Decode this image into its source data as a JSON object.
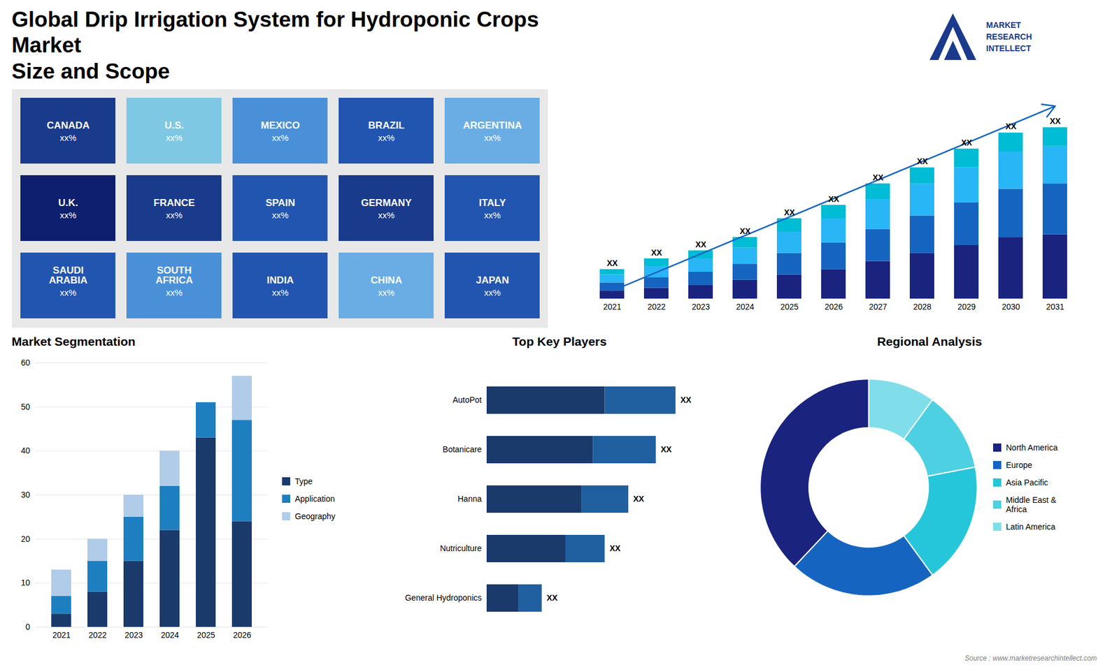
{
  "chart_data": [
    {
      "type": "map",
      "title": "Global Drip Irrigation System for Hydroponic Crops Market\nSize and Scope",
      "categories": [
        "CANADA",
        "U.S.",
        "MEXICO",
        "BRAZIL",
        "ARGENTINA",
        "U.K.",
        "FRANCE",
        "SPAIN",
        "GERMANY",
        "ITALY",
        "SAUDI\nARABIA",
        "SOUTH\nAFRICA",
        "INDIA",
        "CHINA",
        "JAPAN"
      ],
      "colors": [
        "#1a3a8c",
        "#7ec8e3",
        "#4a90d9",
        "#2255b0",
        "#6aade4",
        "#0d1f6e",
        "#1a3a8c",
        "#2255b0",
        "#1a3a8c",
        "#2255b0",
        "#2255b0",
        "#4a90d9",
        "#2255b0",
        "#6aade4",
        "#2255b0"
      ],
      "data_labels": true,
      "value_labels": [
        "xx%",
        "xx%",
        "xx%",
        "xx%",
        "xx%",
        "xx%",
        "xx%",
        "xx%",
        "xx%",
        "xx%",
        "xx%",
        "xx%",
        "xx%",
        "xx%",
        "xx%"
      ],
      "annotations": [
        "Source : www.marketresearchintellect.com",
        "MARKET\nRESEARCH\nINTELLECT"
      ]
    },
    {
      "type": "bar",
      "stacked": true,
      "categories": [
        "2021",
        "2022",
        "2023",
        "2024",
        "2025",
        "2026",
        "2027",
        "2028",
        "2029",
        "2030",
        "2031"
      ],
      "series": [
        {
          "color": "#1a237e",
          "values": [
            3,
            4,
            5,
            7,
            9,
            11,
            14,
            17,
            20,
            23,
            24
          ]
        },
        {
          "color": "#1565c0",
          "values": [
            3,
            4,
            5,
            6,
            8,
            10,
            12,
            14,
            16,
            18,
            19
          ]
        },
        {
          "color": "#29b6f6",
          "values": [
            3,
            4,
            5,
            6,
            8,
            9,
            11,
            12,
            13,
            14,
            14
          ]
        },
        {
          "color": "#00bcd4",
          "values": [
            2,
            3,
            3,
            4,
            5,
            5,
            6,
            6,
            7,
            7,
            7
          ]
        }
      ],
      "ylim": [
        0,
        80
      ],
      "tick_labels": "x",
      "data_labels": true,
      "value_labels": [
        "XX",
        "XX",
        "XX",
        "XX",
        "XX",
        "XX",
        "XX",
        "XX",
        "XX",
        "XX",
        "XX"
      ]
    },
    {
      "type": "bar",
      "title": "Market Segmentation",
      "stacked": true,
      "categories": [
        "2021",
        "2022",
        "2023",
        "2024",
        "2025",
        "2026"
      ],
      "series": [
        {
          "name": "Type",
          "color": "#1a3a6b",
          "values": [
            3,
            8,
            15,
            22,
            43,
            24
          ]
        },
        {
          "name": "Application",
          "color": "#1e7fc0",
          "values": [
            4,
            7,
            10,
            10,
            8,
            23
          ]
        },
        {
          "name": "Geography",
          "color": "#b0cce8",
          "values": [
            6,
            5,
            5,
            8,
            0,
            10
          ]
        }
      ],
      "ylim": [
        0,
        60
      ],
      "yticks": [
        0,
        10,
        20,
        30,
        40,
        50,
        60
      ],
      "grid": true,
      "legend": "right"
    },
    {
      "type": "bar",
      "title": "Top Key Players",
      "orientation": "horizontal",
      "stacked": true,
      "categories": [
        "AutoPot",
        "Botanicare",
        "Hanna",
        "Nutriculture",
        "General Hydroponics"
      ],
      "series": [
        {
          "color": "#1a3a6b",
          "values": [
            30,
            27,
            24,
            20,
            8
          ]
        },
        {
          "color": "#2060a0",
          "values": [
            18,
            16,
            12,
            10,
            6
          ]
        }
      ],
      "xlim": [
        0,
        60
      ],
      "tick_labels": "y",
      "data_labels": true,
      "value_labels": [
        "XX",
        "XX",
        "XX",
        "XX",
        "XX"
      ]
    },
    {
      "type": "pie",
      "title": "Regional Analysis",
      "categories": [
        "Latin America",
        "Middle East &\nAfrica",
        "Asia Pacific",
        "Europe",
        "North America"
      ],
      "values": [
        10,
        12,
        18,
        22,
        38
      ],
      "colors": [
        "#80deea",
        "#4dd0e1",
        "#26c6da",
        "#1565c0",
        "#1a237e"
      ],
      "legend": "right"
    }
  ]
}
